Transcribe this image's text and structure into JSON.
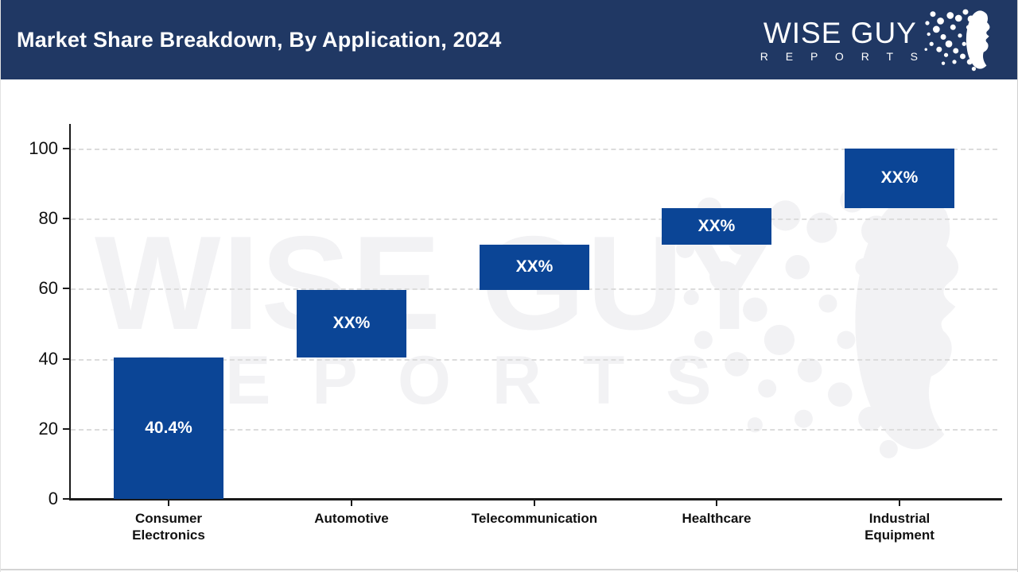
{
  "header": {
    "title": "Market Share Breakdown, By Application, 2024",
    "bg_color": "#203864",
    "logo": {
      "line1": "WISE GUY",
      "line2": "R E P O R T S"
    }
  },
  "watermark": {
    "line1": "WISE GUY",
    "line2": "R E P O R T S"
  },
  "chart_data": {
    "type": "bar",
    "subtype": "waterfall",
    "title": "Market Share Breakdown, By Application, 2024",
    "xlabel": "",
    "ylabel": "",
    "ylim": [
      0,
      106
    ],
    "yticks": [
      0,
      20,
      40,
      60,
      80,
      100
    ],
    "grid": "horizontal-dashed",
    "legend": "none",
    "bar_color": "#0b4596",
    "value_label_color": "#ffffff",
    "categories": [
      "Consumer Electronics",
      "Automotive",
      "Telecommunication",
      "Healthcare",
      "Industrial Equipment"
    ],
    "category_label_lines": [
      [
        "Consumer",
        "Electronics"
      ],
      [
        "Automotive"
      ],
      [
        "Telecommunication"
      ],
      [
        "Healthcare"
      ],
      [
        "Industrial",
        "Equipment"
      ]
    ],
    "segments": [
      {
        "category": "Consumer Electronics",
        "start": 0,
        "end": 40.4,
        "label": "40.4%"
      },
      {
        "category": "Automotive",
        "start": 40.4,
        "end": 59.6,
        "label": "XX%"
      },
      {
        "category": "Telecommunication",
        "start": 59.6,
        "end": 72.6,
        "label": "XX%"
      },
      {
        "category": "Healthcare",
        "start": 72.6,
        "end": 83.0,
        "label": "XX%"
      },
      {
        "category": "Industrial Equipment",
        "start": 83.0,
        "end": 100,
        "label": "XX%"
      }
    ]
  }
}
